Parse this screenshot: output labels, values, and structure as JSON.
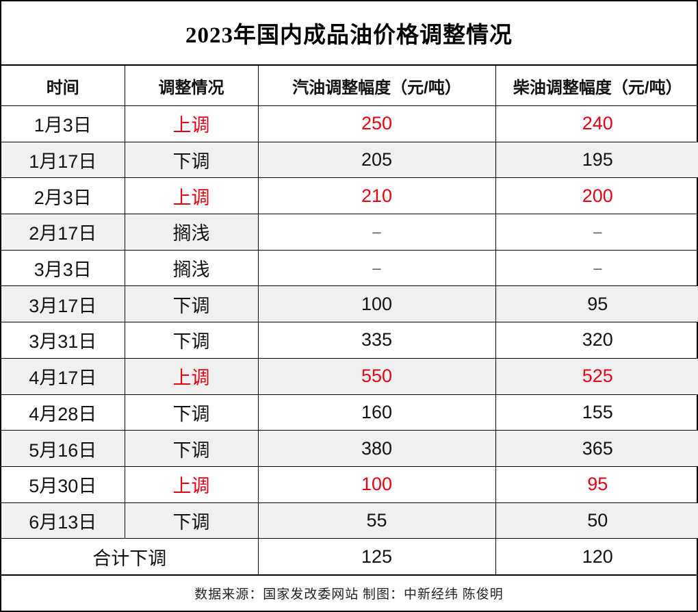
{
  "title": "2023年国内成品油价格调整情况",
  "columns": {
    "time": "时间",
    "action": "调整情况",
    "gasoline": "汽油调整幅度（元/吨）",
    "diesel": "柴油调整幅度（元/吨）"
  },
  "rows": [
    {
      "date": "1月3日",
      "action": "上调",
      "gasoline": "250",
      "diesel": "240"
    },
    {
      "date": "1月17日",
      "action": "下调",
      "gasoline": "205",
      "diesel": "195"
    },
    {
      "date": "2月3日",
      "action": "上调",
      "gasoline": "210",
      "diesel": "200"
    },
    {
      "date": "2月17日",
      "action": "搁浅",
      "gasoline": "–",
      "diesel": "–"
    },
    {
      "date": "3月3日",
      "action": "搁浅",
      "gasoline": "–",
      "diesel": "–"
    },
    {
      "date": "3月17日",
      "action": "下调",
      "gasoline": "100",
      "diesel": "95"
    },
    {
      "date": "3月31日",
      "action": "下调",
      "gasoline": "335",
      "diesel": "320"
    },
    {
      "date": "4月17日",
      "action": "上调",
      "gasoline": "550",
      "diesel": "525"
    },
    {
      "date": "4月28日",
      "action": "下调",
      "gasoline": "160",
      "diesel": "155"
    },
    {
      "date": "5月16日",
      "action": "下调",
      "gasoline": "380",
      "diesel": "365"
    },
    {
      "date": "5月30日",
      "action": "上调",
      "gasoline": "100",
      "diesel": "95"
    },
    {
      "date": "6月13日",
      "action": "下调",
      "gasoline": "55",
      "diesel": "50"
    }
  ],
  "total": {
    "label": "合计下调",
    "gasoline": "125",
    "diesel": "120"
  },
  "source": "数据来源：国家发改委网站 制图：中新经纬 陈俊明",
  "colors": {
    "up_red": "#e60012",
    "alt_row_bg": "#f0f0f0",
    "border": "#000000",
    "dash_gray": "#595959"
  },
  "chart_data": {
    "type": "table",
    "title": "2023年国内成品油价格调整情况",
    "columns": [
      "时间",
      "调整情况",
      "汽油调整幅度（元/吨）",
      "柴油调整幅度（元/吨）"
    ],
    "rows": [
      [
        "1月3日",
        "上调",
        250,
        240
      ],
      [
        "1月17日",
        "下调",
        205,
        195
      ],
      [
        "2月3日",
        "上调",
        210,
        200
      ],
      [
        "2月17日",
        "搁浅",
        null,
        null
      ],
      [
        "3月3日",
        "搁浅",
        null,
        null
      ],
      [
        "3月17日",
        "下调",
        100,
        95
      ],
      [
        "3月31日",
        "下调",
        335,
        320
      ],
      [
        "4月17日",
        "上调",
        550,
        525
      ],
      [
        "4月28日",
        "下调",
        160,
        155
      ],
      [
        "5月16日",
        "下调",
        380,
        365
      ],
      [
        "5月30日",
        "上调",
        100,
        95
      ],
      [
        "6月13日",
        "下调",
        55,
        50
      ]
    ],
    "total_row": [
      "合计下调",
      125,
      120
    ],
    "notes": "上调 rows shown in red; 搁浅 rows show dashes; source line: 数据来源：国家发改委网站 制图：中新经纬 陈俊明"
  }
}
